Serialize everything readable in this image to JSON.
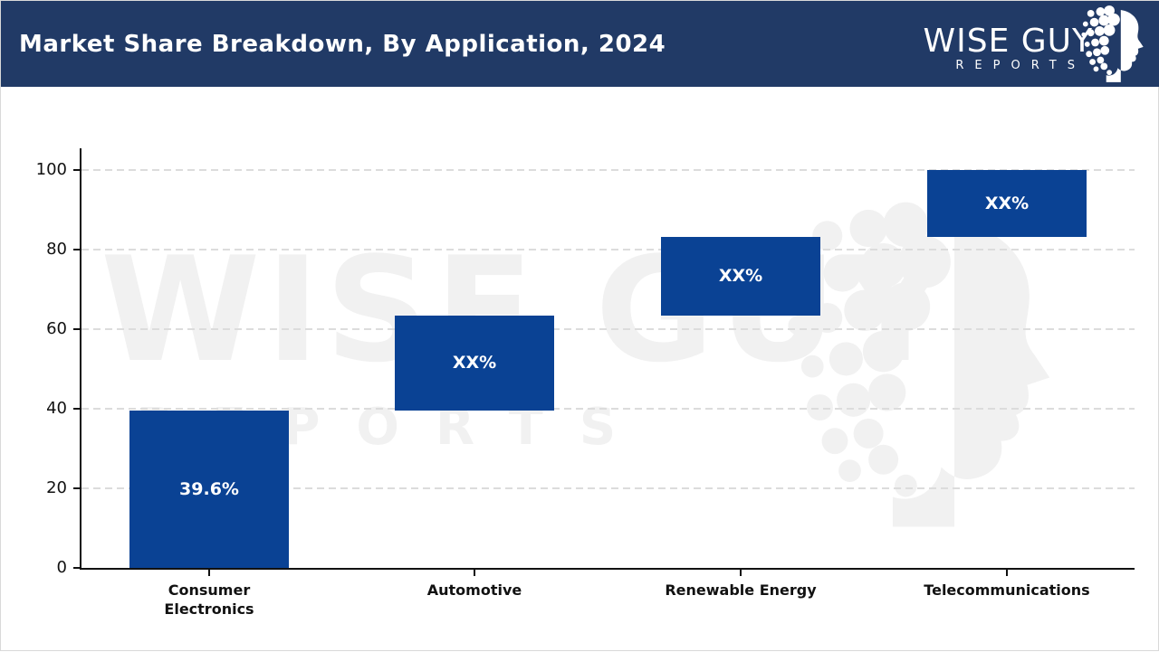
{
  "header": {
    "title": "Market Share Breakdown, By Application, 2024",
    "logo": {
      "line1": "WISE GUY",
      "line2": "REPORTS"
    }
  },
  "watermark": {
    "line1": "WISE GUY",
    "line2": "REPORTS"
  },
  "colors": {
    "header_bg": "#213a66",
    "bar": "#0a4294",
    "grid": "#dcdcdc",
    "axis": "#111111",
    "bar_label": "#ffffff",
    "watermark": "#f1f1f1"
  },
  "chart_data": {
    "type": "bar",
    "subtype": "waterfall",
    "title": "Market Share Breakdown, By Application, 2024",
    "categories": [
      "Consumer\nElectronics",
      "Automotive",
      "Renewable Energy",
      "Telecommunications"
    ],
    "series": [
      {
        "name": "Consumer Electronics",
        "start": 0,
        "end": 39.6,
        "label": "39.6%"
      },
      {
        "name": "Automotive",
        "start": 39.6,
        "end": 63.5,
        "label": "XX%"
      },
      {
        "name": "Renewable Energy",
        "start": 63.5,
        "end": 83.2,
        "label": "XX%"
      },
      {
        "name": "Telecommunications",
        "start": 83.2,
        "end": 100,
        "label": "XX%"
      }
    ],
    "yticks": [
      0,
      20,
      40,
      60,
      80,
      100
    ],
    "ylim": [
      0,
      105
    ],
    "grid": "horizontal-dashed",
    "legend": "none"
  }
}
